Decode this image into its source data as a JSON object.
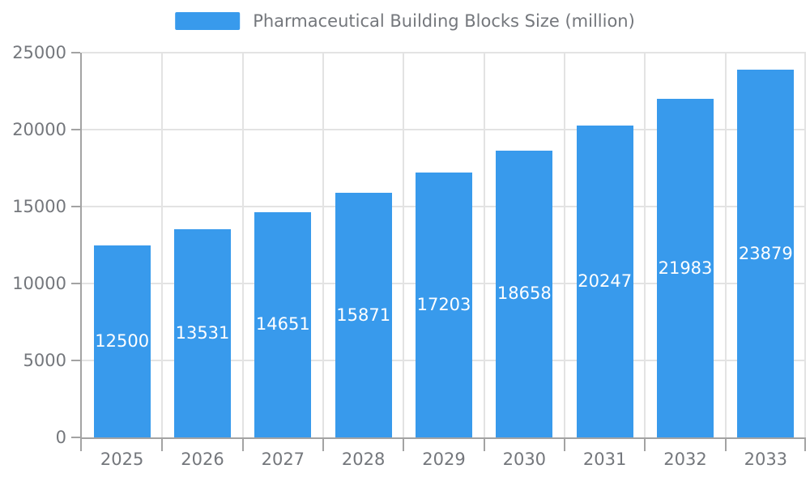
{
  "chart_data": {
    "type": "bar",
    "title": "",
    "categories": [
      "2025",
      "2026",
      "2027",
      "2028",
      "2029",
      "2030",
      "2031",
      "2032",
      "2033"
    ],
    "series": [
      {
        "name": "Pharmaceutical Building Blocks Size (million)",
        "values": [
          12500,
          13531,
          14651,
          15871,
          17203,
          18658,
          20247,
          21983,
          23879
        ],
        "color": "#389AEC"
      }
    ],
    "xlabel": "",
    "ylabel": "",
    "ylim": [
      0,
      25000
    ],
    "yticks": [
      0,
      5000,
      10000,
      15000,
      20000,
      25000
    ],
    "grid": true,
    "grid_vertical": true,
    "legend_position": "top-center",
    "value_labels": {
      "position": "inside-center",
      "color": "#FFFFFF"
    }
  },
  "colors": {
    "bar": "#389AEC",
    "gridline": "#E3E3E3",
    "axis_line": "#A3A3A3",
    "axis_text": "#74777C",
    "legend_text": "#74777C",
    "bar_value_text": "#FFFFFF",
    "background": "#FFFFFF"
  }
}
